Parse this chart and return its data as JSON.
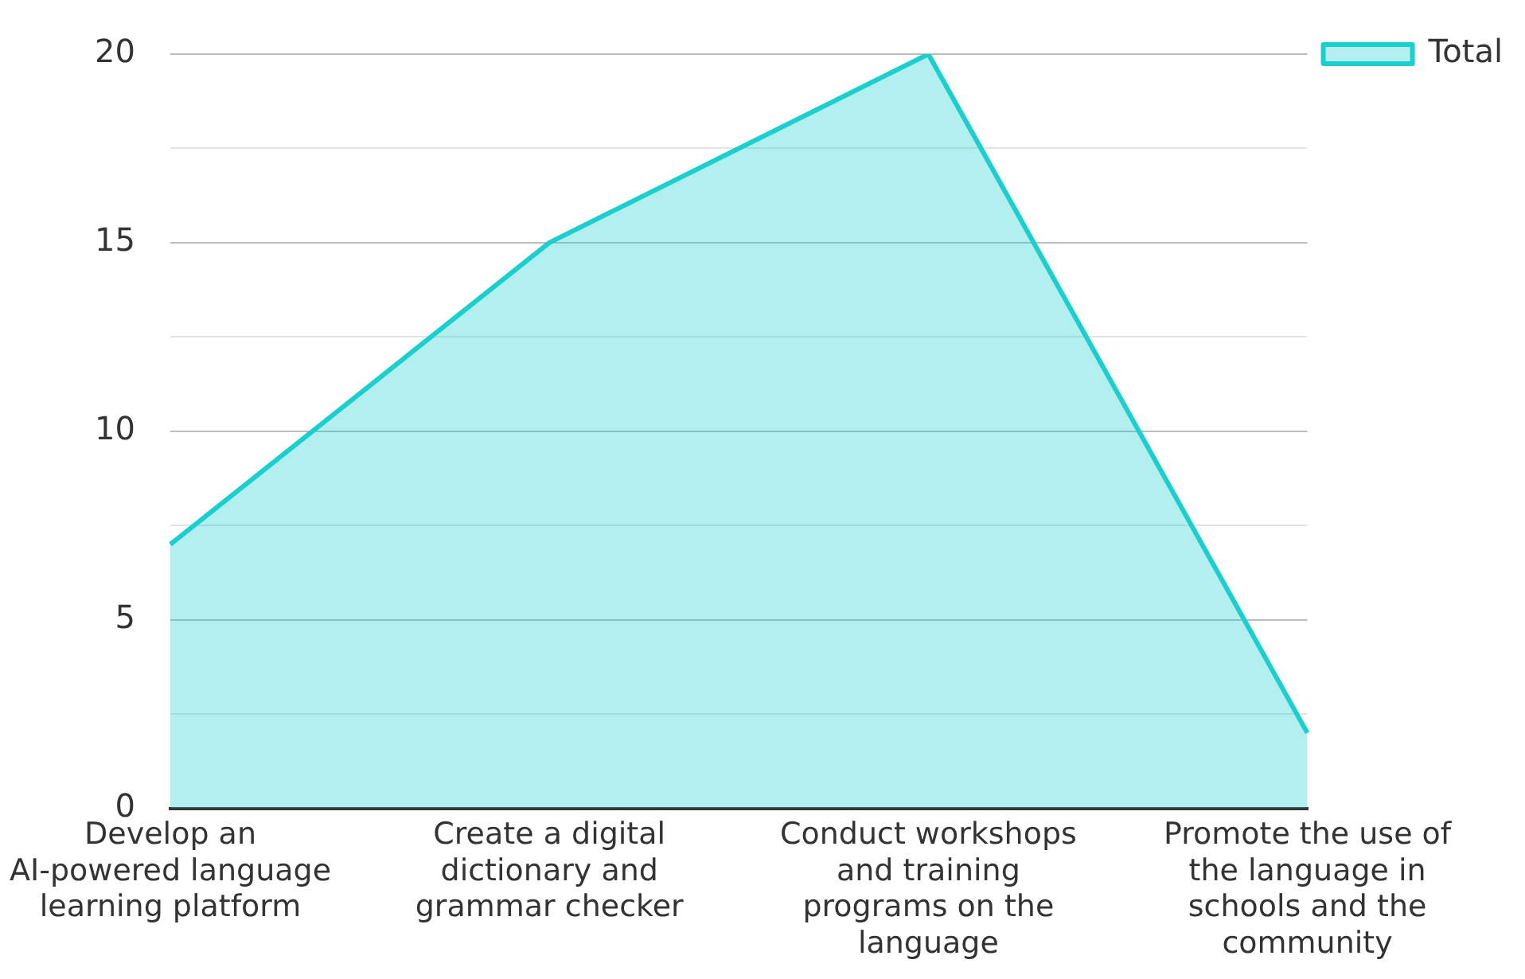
{
  "chart_data": {
    "type": "area",
    "categories": [
      "Develop an AI-powered language learning platform",
      "Create a digital dictionary and grammar checker",
      "Conduct workshops and training programs on the language",
      "Promote the use of the language in schools and the community"
    ],
    "series": [
      {
        "name": "Total",
        "color": "#1ccfcf",
        "values": [
          7,
          15,
          20,
          2
        ]
      }
    ],
    "ylim": [
      0,
      20
    ],
    "yticks": [
      0,
      {
        "value": 2.5,
        "label": null
      },
      5,
      {
        "value": 7.5,
        "label": null
      },
      10,
      {
        "value": 12.5,
        "label": null
      },
      15,
      {
        "value": 17.5,
        "label": null
      },
      20
    ],
    "grid": "y",
    "legend": "top right"
  }
}
